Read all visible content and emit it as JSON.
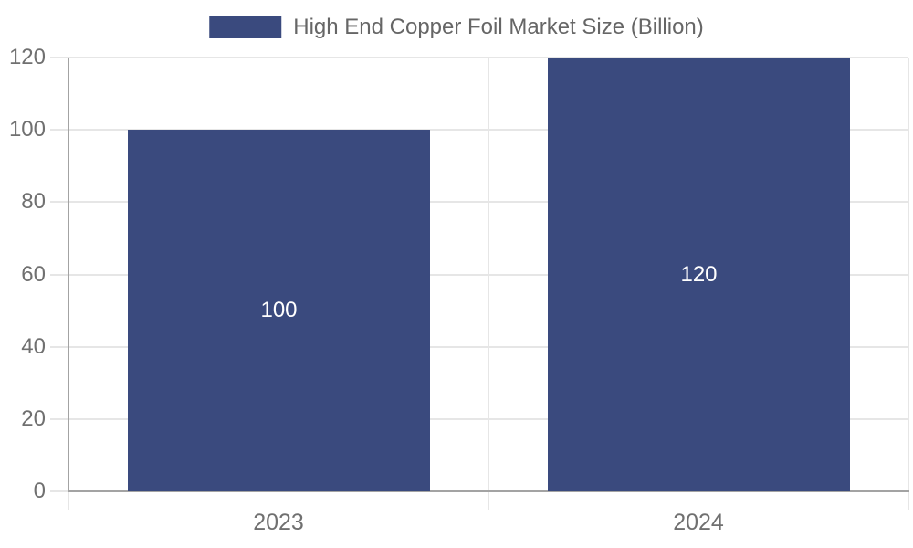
{
  "chart_data": {
    "type": "bar",
    "series_name": "High End Copper Foil Market Size (Billion)",
    "categories": [
      "2023",
      "2024"
    ],
    "values": [
      100,
      120
    ],
    "bar_labels": [
      "100",
      "120"
    ],
    "y_ticks": [
      0,
      20,
      40,
      60,
      80,
      100,
      120
    ],
    "ylim": [
      0,
      120
    ],
    "grid": "on",
    "legend_position": "top-center",
    "colors": {
      "bar": "#3A4A7E",
      "bar_label": "#FFFFFF",
      "grid": "#E6E6E6",
      "axis": "#A3A3A3",
      "tick_label": "#707070",
      "legend_text": "#666666",
      "background": "#FFFFFF"
    }
  }
}
